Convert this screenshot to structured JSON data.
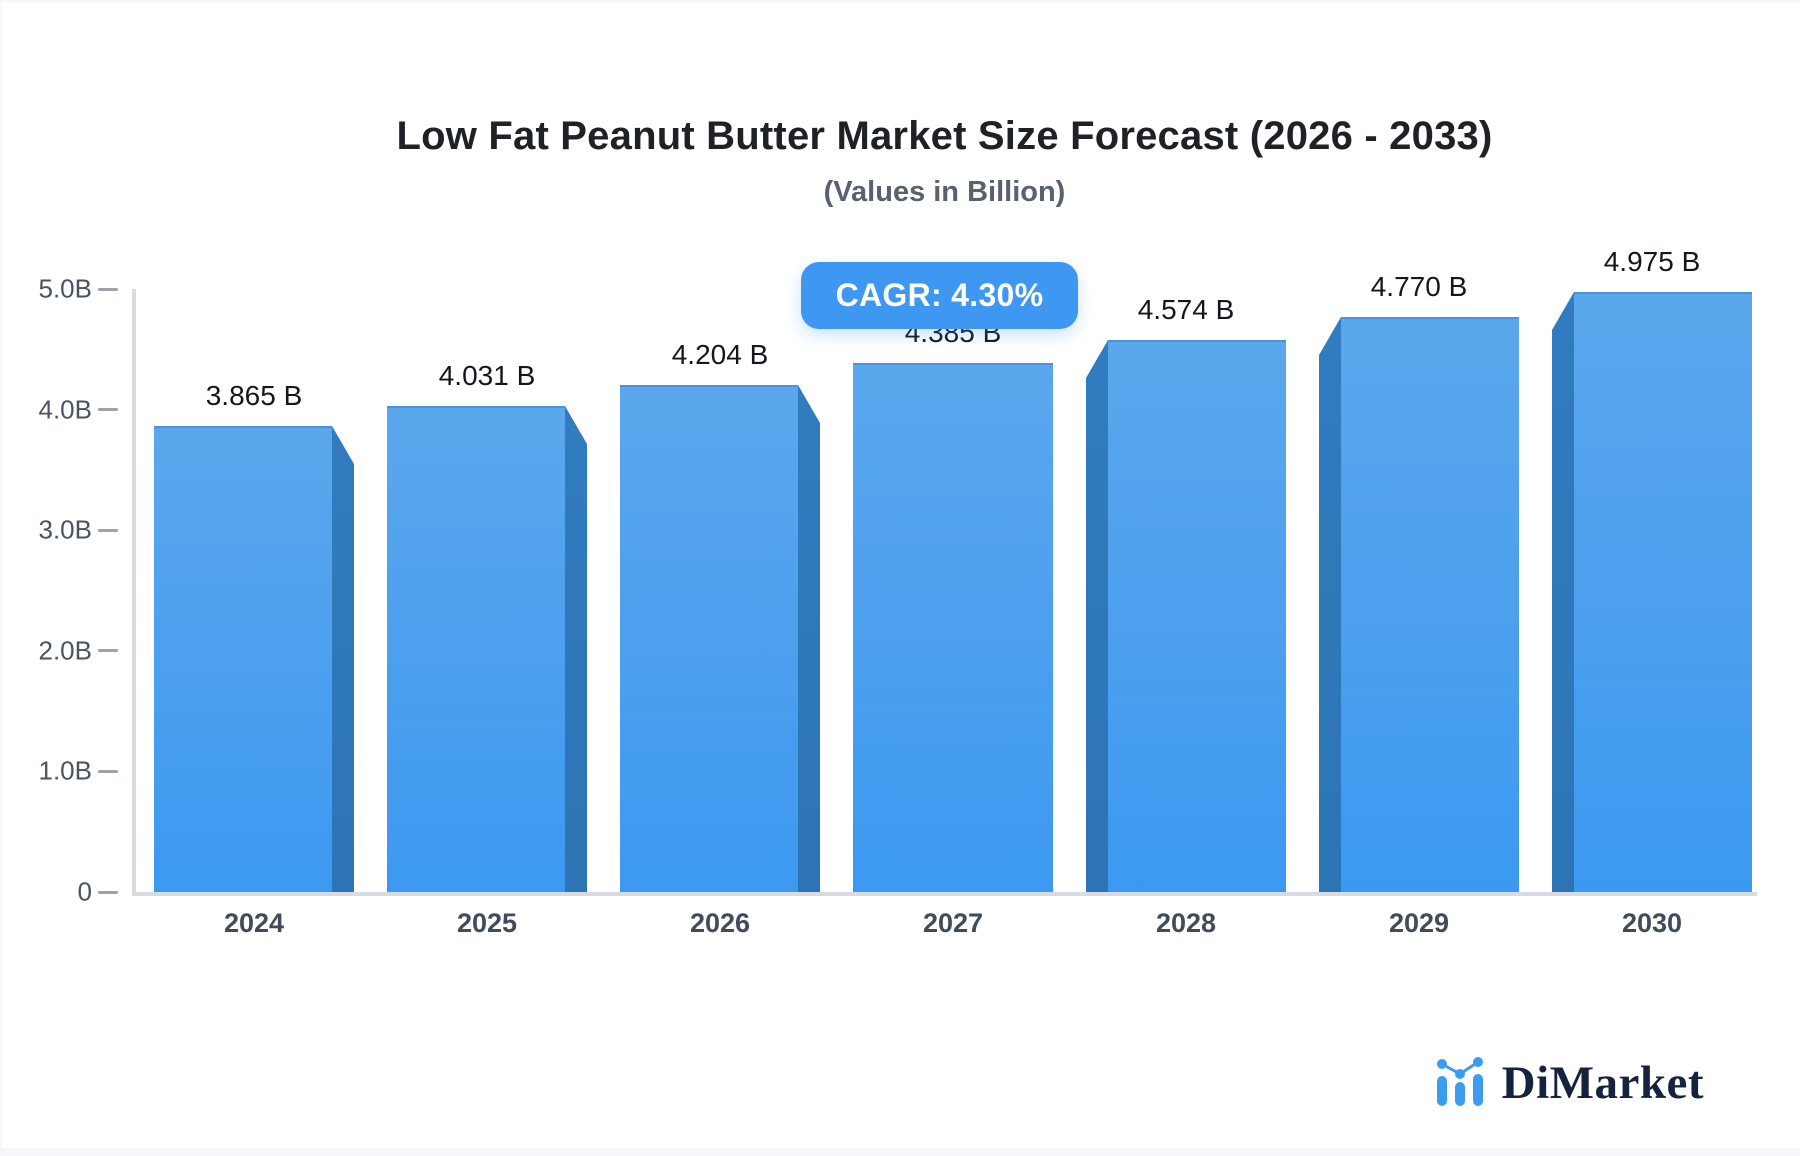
{
  "header": {
    "title": "Low Fat Peanut Butter Market Size Forecast (2026 - 2033)",
    "subtitle": "(Values in Billion)"
  },
  "badge": {
    "label": "CAGR: 4.30%"
  },
  "chart_data": {
    "type": "bar",
    "categories": [
      "2024",
      "2025",
      "2026",
      "2027",
      "2028",
      "2029",
      "2030"
    ],
    "values": [
      3.865,
      4.031,
      4.204,
      4.385,
      4.574,
      4.77,
      4.975
    ],
    "value_labels": [
      "3.865 B",
      "4.031 B",
      "4.204 B",
      "4.385 B",
      "4.574 B",
      "4.770 B",
      "4.975 B"
    ],
    "title": "Low Fat Peanut Butter Market Size Forecast (2026 - 2033)",
    "subtitle": "(Values in Billion)",
    "xlabel": "",
    "ylabel": "",
    "ylim": [
      0,
      5
    ],
    "yticks": [
      0,
      1,
      2,
      3,
      4,
      5
    ],
    "ytick_labels": [
      "0",
      "1.0B",
      "2.0B",
      "3.0B",
      "4.0B",
      "5.0B"
    ],
    "grid": false,
    "legend": false,
    "bar_colors": {
      "body_top": "#5BA7ED",
      "body_bottom": "#3C99F1",
      "side_3d": "#2D74B4"
    }
  },
  "branding": {
    "name": "DiMarket",
    "icon": "mini-bar-line-chart-logo-icon",
    "icon_color": "#3E9CF0",
    "text_color": "#16233E"
  },
  "colors": {
    "accent_blue": "#3E97F0",
    "axis_line": "#D8DCE2",
    "tick": "#9BA2AC",
    "y_label": "#4A5361",
    "x_label": "#414B59",
    "title": "#1E2126",
    "subtitle": "#59616F",
    "background": "#FFFFFF"
  }
}
